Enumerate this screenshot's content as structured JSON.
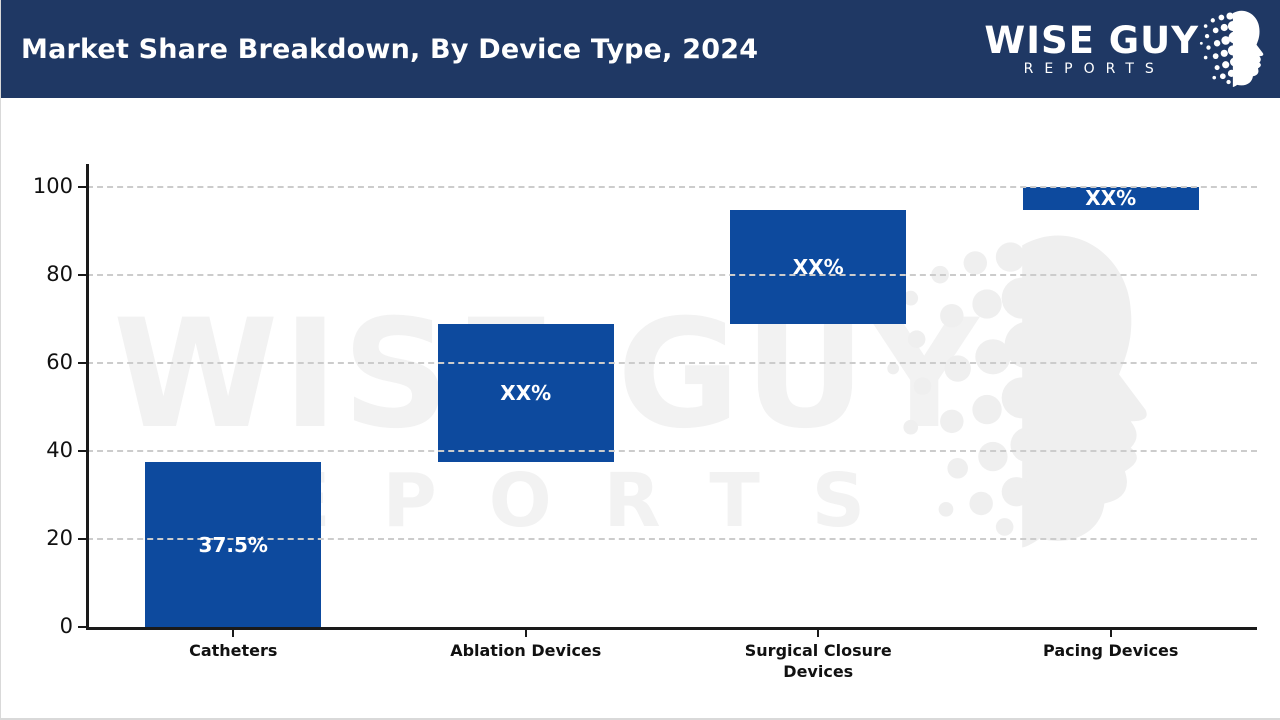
{
  "header": {
    "title": "Market Share Breakdown, By Device Type, 2024",
    "logo": {
      "line1": "WISE GUY",
      "line2": "REPORTS"
    }
  },
  "watermark": {
    "line1": "WISE GUY",
    "line2": "REPORTS"
  },
  "colors": {
    "header_bg": "#1f3864",
    "bar": "#0d4a9e",
    "bar_label": "#ffffff",
    "gridline": "#cccccc",
    "axis": "#1a1a1a",
    "watermark": "#f2f2f2"
  },
  "chart_data": {
    "type": "bar",
    "subtype": "waterfall",
    "title": "Market Share Breakdown, By Device Type, 2024",
    "categories": [
      "Catheters",
      "Ablation Devices",
      "Surgical Closure Devices",
      "Pacing Devices"
    ],
    "segments": [
      {
        "category": "Catheters",
        "start": 0,
        "end": 37.5,
        "label": "37.5%"
      },
      {
        "category": "Ablation Devices",
        "start": 37.5,
        "end": 68.8,
        "label": "XX%"
      },
      {
        "category": "Surgical Closure Devices",
        "start": 68.8,
        "end": 94.8,
        "label": "XX%"
      },
      {
        "category": "Pacing Devices",
        "start": 94.8,
        "end": 100,
        "label": "XX%"
      }
    ],
    "ylabel": "",
    "xlabel": "",
    "yticks": [
      0,
      20,
      40,
      60,
      80,
      100
    ],
    "ylim": [
      0,
      104
    ],
    "grid": "horizontal-dashed",
    "legend": "none"
  }
}
